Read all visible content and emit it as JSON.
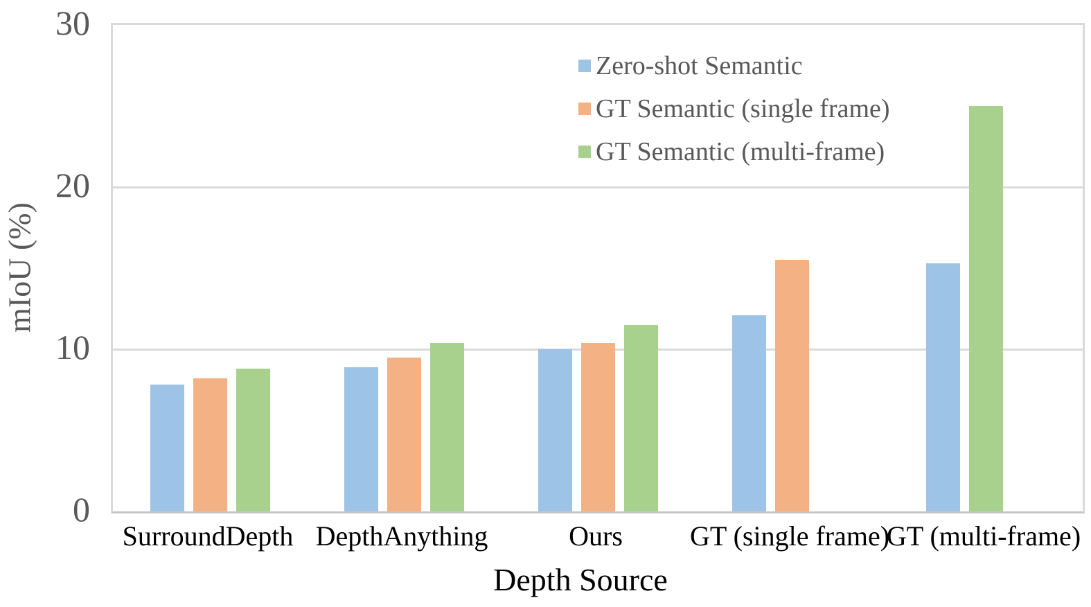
{
  "chart_data": {
    "type": "bar",
    "title": "",
    "xlabel": "Depth Source",
    "ylabel": "mIoU (%)",
    "ylim": [
      0,
      30
    ],
    "yticks": [
      0,
      10,
      20,
      30
    ],
    "grid": "horizontal",
    "legend_position": "inside-top-right",
    "categories": [
      "SurroundDepth",
      "DepthAnything",
      "Ours",
      "GT (single frame)",
      "GT (multi-frame)"
    ],
    "series": [
      {
        "name": "Zero-shot Semantic",
        "color": "#9DC3E6",
        "values": [
          7.8,
          8.9,
          10.0,
          12.1,
          15.3
        ]
      },
      {
        "name": "GT Semantic (single frame)",
        "color": "#F4B183",
        "values": [
          8.2,
          9.5,
          10.4,
          15.5,
          null
        ]
      },
      {
        "name": "GT Semantic (multi-frame)",
        "color": "#A9D18E",
        "values": [
          8.8,
          10.4,
          11.5,
          null,
          25.0
        ]
      }
    ],
    "slot_layout": [
      [
        0,
        1,
        2
      ],
      [
        0,
        1,
        2
      ],
      [
        0,
        1,
        2
      ],
      [
        0,
        1,
        null
      ],
      [
        0,
        2,
        null
      ]
    ],
    "colors": {
      "tick_label": "#595959",
      "axis_title": "#595959",
      "category_label": "#000000",
      "gridline": "#D9D9D9",
      "baseline": "#C6C6C6",
      "background": "#FFFFFF"
    }
  }
}
